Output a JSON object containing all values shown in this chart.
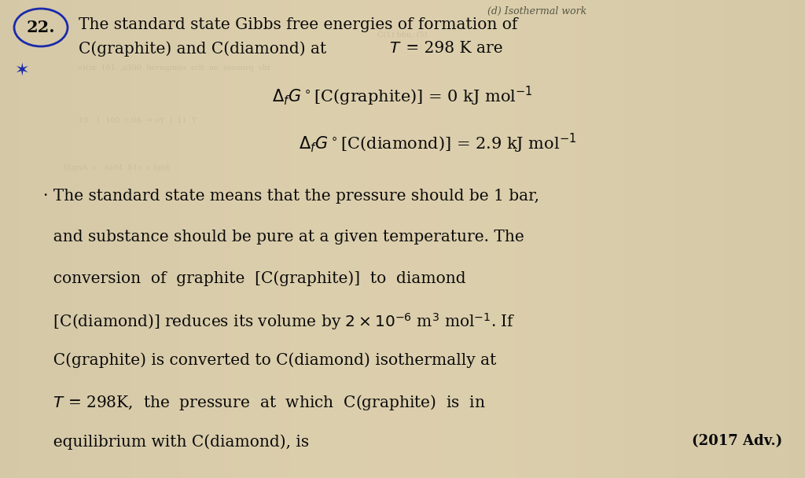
{
  "background_color": "#d4c9a8",
  "text_color": "#0a0a0a",
  "fig_width": 10.24,
  "fig_height": 6.08,
  "top_partial": "(d) Isothermal work",
  "q_number": "22.",
  "star_color": "#1a2aaa",
  "circle_color": "#1a2aaa",
  "title_line1": "The standard state Gibbs free energies of formation of",
  "title_line2_part1": "C(graphite) and C(diamond) at ",
  "title_line2_T": "T",
  "title_line2_part2": " = 298 K are",
  "eq1": "$\\Delta_f G^\\circ$[C(graphite)] = 0 kJ mol$^{-1}$",
  "eq2": "$\\Delta_f G^\\circ$[C(diamond)] = 2.9 kJ mol$^{-1}$",
  "para_lines": [
    "The standard state means that the pressure should be 1 bar,",
    "and substance should be pure at a given temperature. The",
    "conversion  of  graphite  [C(graphite)]  to  diamond",
    "[C(diamond)] reduces its volume by $2\\times 10^{-6}$ m$^3$ mol$^{-1}$. If",
    "C(graphite) is converted to C(diamond) isothermally at",
    "$T$ = 298K,  the  pressure  at  which  C(graphite)  is  in",
    "equilibrium with C(diamond), is"
  ],
  "year_tag": "(2017 Adv.)"
}
